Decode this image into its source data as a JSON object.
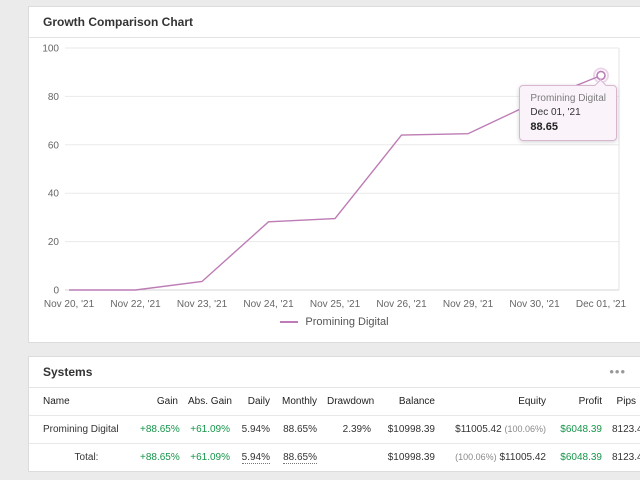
{
  "chart_card": {
    "title": "Growth Comparison Chart",
    "tooltip": {
      "series": "Promining Digital",
      "date": "Dec 01, '21",
      "value": "88.65"
    }
  },
  "chart_data": {
    "type": "line",
    "title": "Growth Comparison Chart",
    "x": [
      "Nov 20, '21",
      "Nov 22, '21",
      "Nov 23, '21",
      "Nov 24, '21",
      "Nov 25, '21",
      "Nov 26, '21",
      "Nov 29, '21",
      "Nov 30, '21",
      "Dec 01, '21"
    ],
    "series": [
      {
        "name": "Promining Digital",
        "color": "#bd7cb5",
        "values": [
          0,
          0.02,
          3.5,
          28.2,
          29.5,
          64.0,
          64.6,
          77.5,
          88.65
        ]
      }
    ],
    "ylim": [
      0,
      100
    ],
    "yticks": [
      0,
      20,
      40,
      60,
      80,
      100
    ],
    "grid": true,
    "legend_position": "bottom",
    "highlight_point": {
      "x": "Dec 01, '21",
      "value": 88.65
    }
  },
  "systems_card": {
    "title": "Systems",
    "menu_icon": "•••",
    "table": {
      "columns": [
        "Name",
        "Gain",
        "Abs. Gain",
        "Daily",
        "Monthly",
        "Drawdown",
        "Balance",
        "Equity",
        "Profit",
        "Pips"
      ],
      "rows": [
        {
          "name": "Promining Digital",
          "gain": "+88.65%",
          "abs_gain": "+61.09%",
          "daily": "5.94%",
          "monthly": "88.65%",
          "drawdown": "2.39%",
          "balance": "$10998.39",
          "equity": "$11005.42",
          "equity_pct": "(100.06%)",
          "profit": "$6048.39",
          "pips": "8123.4"
        },
        {
          "name": "Total:",
          "gain": "+88.65%",
          "abs_gain": "+61.09%",
          "daily": "5.94%",
          "monthly": "88.65%",
          "drawdown": "",
          "balance": "$10998.39",
          "equity": "$11005.42",
          "equity_pct": "(100.06%)",
          "profit": "$6048.39",
          "pips": "8123.4"
        }
      ]
    }
  },
  "colors": {
    "positive": "#15964a",
    "series_line": "#bd7cb5",
    "tooltip_bg": "#faf3fa",
    "tooltip_border": "#d8b6d2"
  }
}
